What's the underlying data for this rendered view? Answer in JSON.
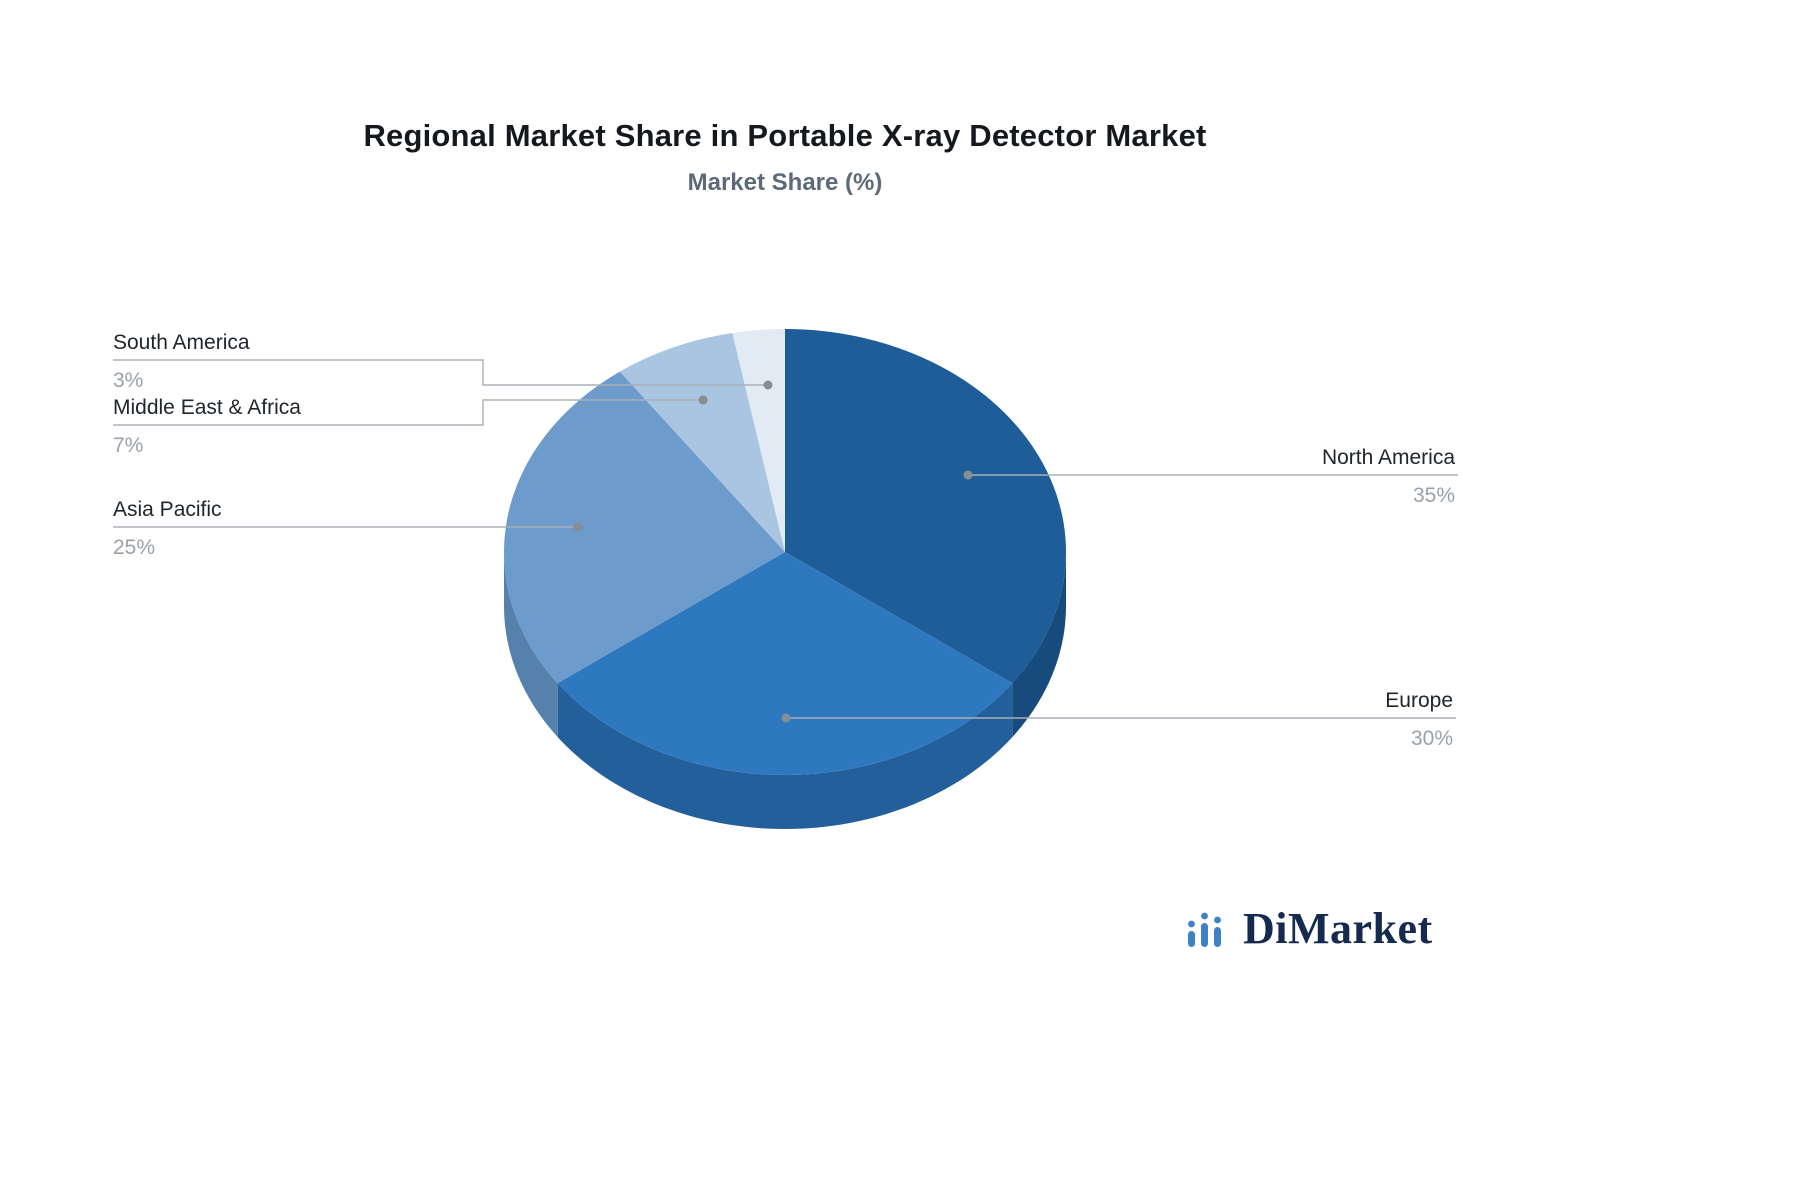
{
  "header": {
    "title": "Regional Market Share in Portable X-ray Detector Market",
    "subtitle": "Market Share (%)"
  },
  "chart_data": {
    "type": "pie",
    "title": "Regional Market Share in Portable X-ray Detector Market",
    "subtitle": "Market Share (%)",
    "unit": "%",
    "style": "3d",
    "legend": "none",
    "start_angle_deg": -90,
    "direction": "clockwise",
    "series": [
      {
        "name": "North America",
        "value": 35,
        "value_label": "35%",
        "color": "#1f5d99",
        "side_color": "#174a7d",
        "label_side": "right"
      },
      {
        "name": "Europe",
        "value": 30,
        "value_label": "30%",
        "color": "#2d78bf",
        "side_color": "#23609b",
        "label_side": "right"
      },
      {
        "name": "Asia Pacific",
        "value": 25,
        "value_label": "25%",
        "color": "#6d9bcc",
        "side_color": "#5781ad",
        "label_side": "left"
      },
      {
        "name": "Middle East & Africa",
        "value": 7,
        "value_label": "7%",
        "color": "#a9c5e2",
        "side_color": "#8aa6c4",
        "label_side": "left"
      },
      {
        "name": "South America",
        "value": 3,
        "value_label": "3%",
        "color": "#e2eaf3",
        "side_color": "#c3cfdd",
        "label_side": "left"
      }
    ],
    "label_text_color": "#20262c",
    "value_text_color": "#9aa1a9",
    "leader_line_color": "#a9b0b7",
    "leader_dot_color": "#868d95"
  },
  "branding": {
    "logo_text": "DiMarket",
    "logo_icon": "bar-chart-icon",
    "logo_text_color": "#152a4e",
    "logo_icon_color": "#3e81c4"
  }
}
